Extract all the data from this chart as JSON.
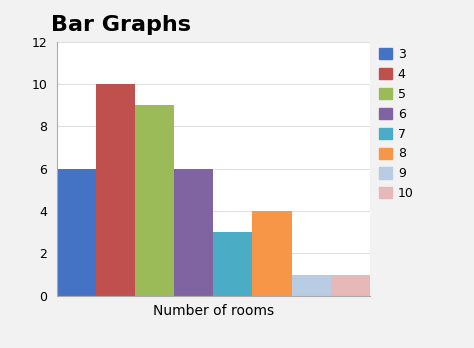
{
  "title": "Bar Graphs",
  "xlabel": "Number of rooms",
  "categories": [
    "3",
    "4",
    "5",
    "6",
    "7",
    "8",
    "9",
    "10"
  ],
  "values": [
    6,
    10,
    9,
    6,
    3,
    4,
    1,
    1
  ],
  "colors": [
    "#4472C4",
    "#C0504D",
    "#9BBB59",
    "#8064A2",
    "#4BACC6",
    "#F79646",
    "#B8CCE4",
    "#E6B9B8"
  ],
  "ylim": [
    0,
    12
  ],
  "yticks": [
    0,
    2,
    4,
    6,
    8,
    10,
    12
  ],
  "title_fontsize": 16,
  "label_fontsize": 10,
  "tick_fontsize": 9,
  "legend_fontsize": 9,
  "background_color": "#F2F2F2",
  "plot_bg_color": "#FFFFFF",
  "grid_color": "#E0E0E0"
}
